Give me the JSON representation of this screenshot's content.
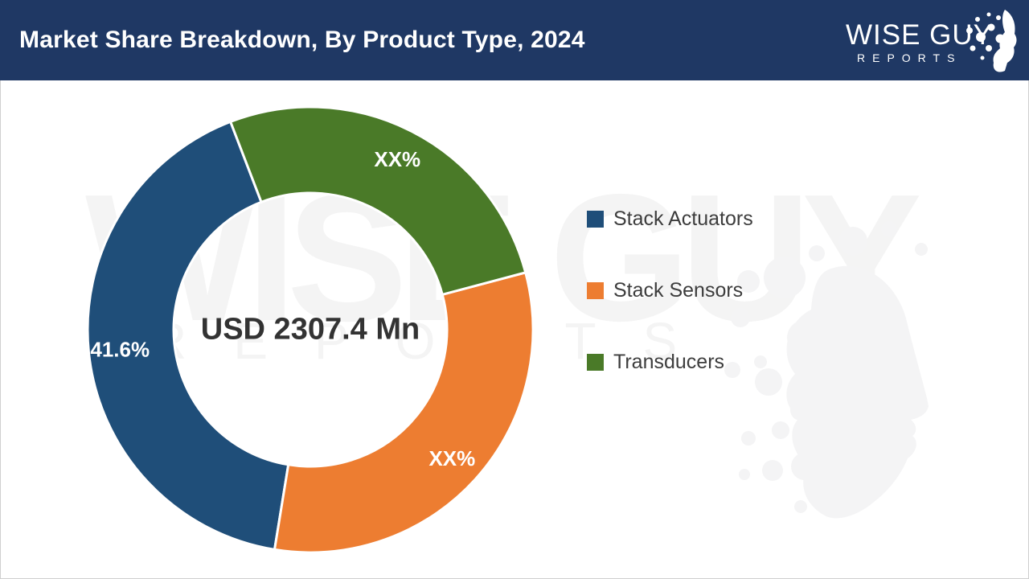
{
  "header": {
    "title": "Market Share Breakdown, By Product Type, 2024",
    "logo": {
      "line1": "WISE GUY",
      "line2": "REPORTS"
    }
  },
  "watermark": {
    "line1": "WISE GUY",
    "line2": "REPORTS"
  },
  "chart_data": {
    "type": "pie",
    "subtype": "donut",
    "title": "Market Share Breakdown, By Product Type, 2024",
    "center_total": "USD 2307.4 Mn",
    "start_angle_deg": 111,
    "direction": "counterclockwise",
    "legend_position": "right",
    "slices": [
      {
        "name": "Stack Actuators",
        "display_label": "41.6%",
        "sweep_pct": 41.6,
        "color": "#1F4E79"
      },
      {
        "name": "Stack Sensors",
        "display_label": "XX%",
        "sweep_pct": 31.7,
        "color": "#ED7D31"
      },
      {
        "name": "Transducers",
        "display_label": "XX%",
        "sweep_pct": 26.7,
        "color": "#4A7A28"
      }
    ]
  },
  "colors": {
    "header_bg": "#1F3864",
    "slice_blue": "#1F4E79",
    "slice_orange": "#ED7D31",
    "slice_green": "#4A7A28",
    "center_text": "#333333",
    "legend_text": "#3d3d3d",
    "watermark": "#f4f4f4"
  }
}
